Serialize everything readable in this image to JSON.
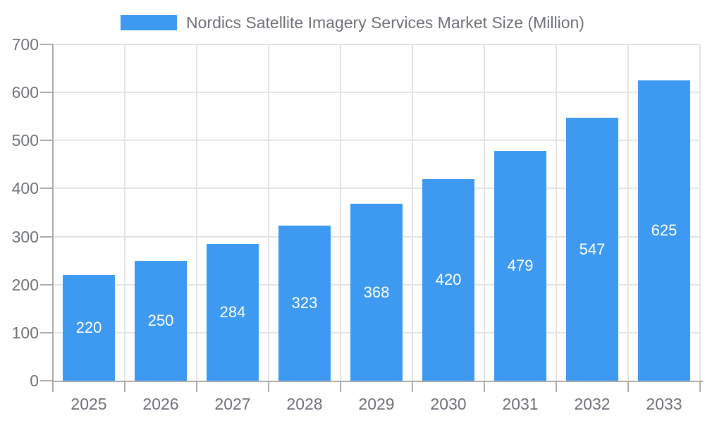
{
  "chart_data": {
    "type": "bar",
    "title": "Nordics Satellite Imagery Services Market Size (Million)",
    "legend": [
      "Nordics Satellite Imagery Services Market Size (Million)"
    ],
    "legend_position": "top",
    "categories": [
      "2025",
      "2026",
      "2027",
      "2028",
      "2029",
      "2030",
      "2031",
      "2032",
      "2033"
    ],
    "values": [
      220,
      250,
      284,
      323,
      368,
      420,
      479,
      547,
      625
    ],
    "value_labels_visible": true,
    "xlabel": "",
    "ylabel": "",
    "ylim": [
      0,
      700
    ],
    "yticks": [
      0,
      100,
      200,
      300,
      400,
      500,
      600,
      700
    ],
    "grid": true,
    "colors": {
      "bar": "#3D9AF0",
      "value_label": "#FFFFFF",
      "axis_label": "#6E7079",
      "axis_line": "#ABABAB",
      "gridline": "#E4E4E4",
      "background": "#FFFFFF"
    }
  }
}
